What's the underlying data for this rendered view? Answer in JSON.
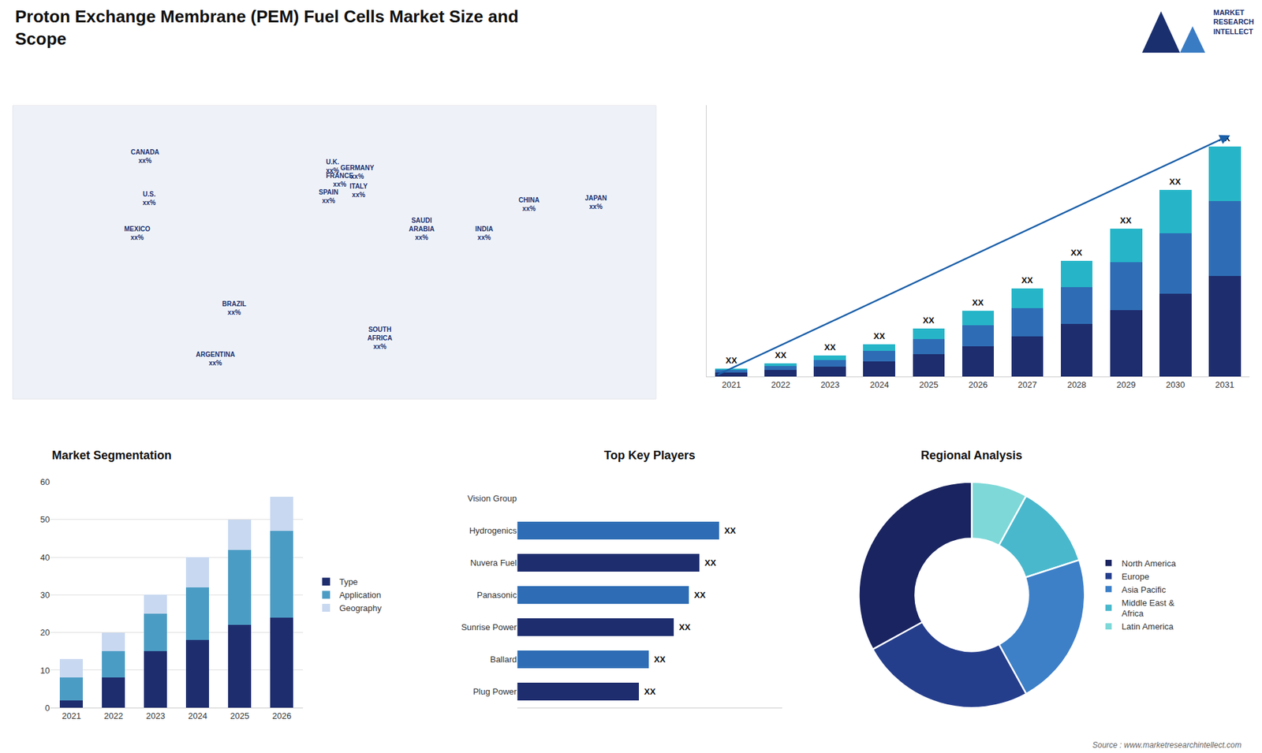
{
  "title": "Proton Exchange Membrane (PEM) Fuel Cells Market Size and\nScope",
  "annotations": [
    "MARKET\nRESEARCH\nINTELLECT",
    "Source : www.marketresearchintellect.com"
  ],
  "chart_data": [
    {
      "type": "map",
      "xlim": [
        -170,
        170
      ],
      "ylim": [
        -60,
        85
      ],
      "tick_labels": false,
      "annotations": [
        {
          "text": "CANADA\nxx%",
          "x": -100,
          "y": 60
        },
        {
          "text": "U.S.\nxx%",
          "x": -98,
          "y": 39
        },
        {
          "text": "MEXICO\nxx%",
          "x": -104,
          "y": 22
        },
        {
          "text": "BRAZIL\nxx%",
          "x": -53,
          "y": -15
        },
        {
          "text": "ARGENTINA\nxx%",
          "x": -63,
          "y": -40
        },
        {
          "text": "U.K.\nxx%",
          "x": -1,
          "y": 55
        },
        {
          "text": "FRANCE\nxx%",
          "x": 3,
          "y": 48
        },
        {
          "text": "SPAIN\nxx%",
          "x": -3,
          "y": 40
        },
        {
          "text": "GERMANY\nxx%",
          "x": 12,
          "y": 52
        },
        {
          "text": "ITALY\nxx%",
          "x": 13,
          "y": 43
        },
        {
          "text": "SAUDI\nARABIA\nxx%",
          "x": 46,
          "y": 24
        },
        {
          "text": "SOUTH\nAFRICA\nxx%",
          "x": 24,
          "y": -30
        },
        {
          "text": "CHINA\nxx%",
          "x": 103,
          "y": 36
        },
        {
          "text": "INDIA\nxx%",
          "x": 79,
          "y": 22
        },
        {
          "text": "JAPAN\nxx%",
          "x": 138,
          "y": 37
        }
      ]
    },
    {
      "type": "bar",
      "stacked": true,
      "categories": [
        "2021",
        "2022",
        "2023",
        "2024",
        "2025",
        "2026",
        "2027",
        "2028",
        "2029",
        "2030",
        "2031"
      ],
      "series": [
        {
          "color": "#1e2d6e",
          "values": [
            1.0,
            1.6,
            2.5,
            3.8,
            5.5,
            7.5,
            10.0,
            13.0,
            16.5,
            20.5,
            25.0
          ]
        },
        {
          "color": "#2e6db5",
          "values": [
            0.6,
            1.0,
            1.6,
            2.5,
            3.8,
            5.2,
            7.0,
            9.2,
            11.8,
            15.0,
            18.5
          ]
        },
        {
          "color": "#26b5c8",
          "values": [
            0.4,
            0.7,
            1.1,
            1.7,
            2.6,
            3.6,
            4.9,
            6.5,
            8.4,
            10.8,
            13.5
          ]
        }
      ],
      "ylim": [
        0,
        67.26
      ],
      "tick_labels": "x",
      "annotations": [
        "XX",
        "XX",
        "XX",
        "XX",
        "XX",
        "XX",
        "XX",
        "XX",
        "XX",
        "XX",
        "XX"
      ]
    },
    {
      "type": "bar",
      "title": "Market Segmentation",
      "stacked": true,
      "categories": [
        "2021",
        "2022",
        "2023",
        "2024",
        "2025",
        "2026"
      ],
      "series": [
        {
          "name": "Type",
          "color": "#1e2d6e",
          "values": [
            2,
            8,
            15,
            18,
            22,
            24
          ]
        },
        {
          "name": "Application",
          "color": "#4b9cc4",
          "values": [
            6,
            7,
            10,
            14,
            20,
            23
          ]
        },
        {
          "name": "Geography",
          "color": "#c8d8f0",
          "values": [
            5,
            5,
            5,
            8,
            8,
            9
          ]
        }
      ],
      "ylim": [
        0,
        60
      ],
      "yticks": [
        0,
        10,
        20,
        30,
        40,
        50,
        60
      ],
      "grid": true,
      "legend": "right"
    },
    {
      "type": "bar",
      "title": "Top Key Players",
      "orientation": "horizontal",
      "categories": [
        "Vision Group",
        "Hydrogenics",
        "Nuvera Fuel",
        "Panasonic",
        "Sunrise Power",
        "Ballard",
        "Plug Power"
      ],
      "values": [
        0,
        80,
        72,
        68,
        62,
        52,
        48
      ],
      "colors": [
        "#1e2d6e",
        "#2e6db5",
        "#1e2d6e",
        "#2e6db5",
        "#1e2d6e",
        "#2e6db5",
        "#1e2d6e"
      ],
      "xlim": [
        0,
        105
      ],
      "tick_labels": "y",
      "annotations": [
        null,
        "XX",
        "XX",
        "XX",
        "XX",
        "XX",
        "XX"
      ]
    },
    {
      "type": "pie",
      "title": "Regional Analysis",
      "categories": [
        "Latin America",
        "Middle East &\nAfrica",
        "Asia Pacific",
        "Europe",
        "North America"
      ],
      "values": [
        8,
        12,
        22,
        25,
        33
      ],
      "colors": [
        "#7ed8d8",
        "#4ab8cc",
        "#3d80c8",
        "#253e8c",
        "#1a2460"
      ],
      "legend": "right"
    }
  ]
}
